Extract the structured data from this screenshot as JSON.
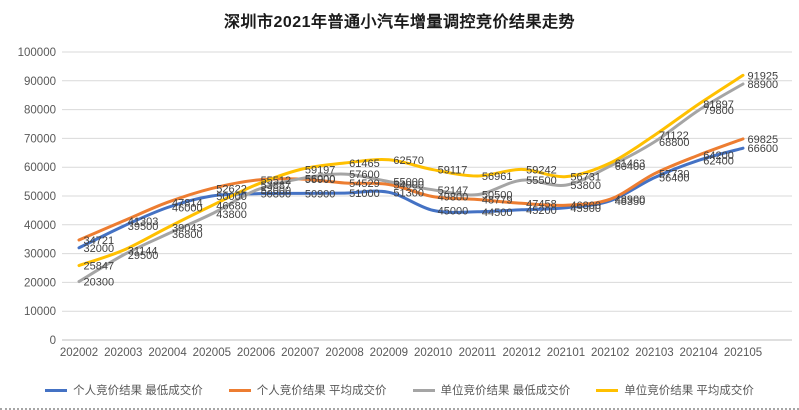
{
  "title": "深圳市2021年普通小汽车增量调控竞价结果走势",
  "chart_data": {
    "type": "line",
    "title": "深圳市2021年普通小汽车增量调控竞价结果走势",
    "categories": [
      "202002",
      "202003",
      "202004",
      "202005",
      "202006",
      "202007",
      "202008",
      "202009",
      "202010",
      "202011",
      "202012",
      "202101",
      "202102",
      "202103",
      "202104",
      "202105"
    ],
    "series": [
      {
        "name": "个人竞价结果 最低成交价",
        "color": "#4472C4",
        "values": [
          32000,
          39500,
          46000,
          50000,
          50800,
          50900,
          51000,
          51300,
          45000,
          44500,
          45200,
          45900,
          48350,
          56400,
          62400,
          66600
        ]
      },
      {
        "name": "个人竞价结果 平均成交价",
        "color": "#ED7D31",
        "values": [
          34721,
          41303,
          47814,
          52622,
          55512,
          55900,
          54529,
          54000,
          49800,
          48779,
          47458,
          46800,
          48900,
          57730,
          64200,
          69825
        ]
      },
      {
        "name": "单位竞价结果 最低成交价",
        "color": "#A5A5A5",
        "values": [
          20300,
          29500,
          36800,
          43800,
          52000,
          56000,
          57600,
          55000,
          52147,
          50500,
          55500,
          53800,
          60400,
          68800,
          79800,
          88900
        ]
      },
      {
        "name": "单位竞价结果 平均成交价",
        "color": "#FFC000",
        "values": [
          25847,
          31144,
          39043,
          46680,
          53887,
          59197,
          61465,
          62570,
          59117,
          56961,
          59242,
          56731,
          61463,
          71122,
          81897,
          91925
        ]
      }
    ],
    "ylim": [
      0,
      100000
    ],
    "ytick_step": 10000,
    "grid": true,
    "data_labels": true,
    "legend_position": "bottom",
    "colors": {
      "grid": "#d9d9d9",
      "axis_line": "#bfbfbf",
      "tick_text": "#595959",
      "data_label_text": "#404040"
    }
  }
}
